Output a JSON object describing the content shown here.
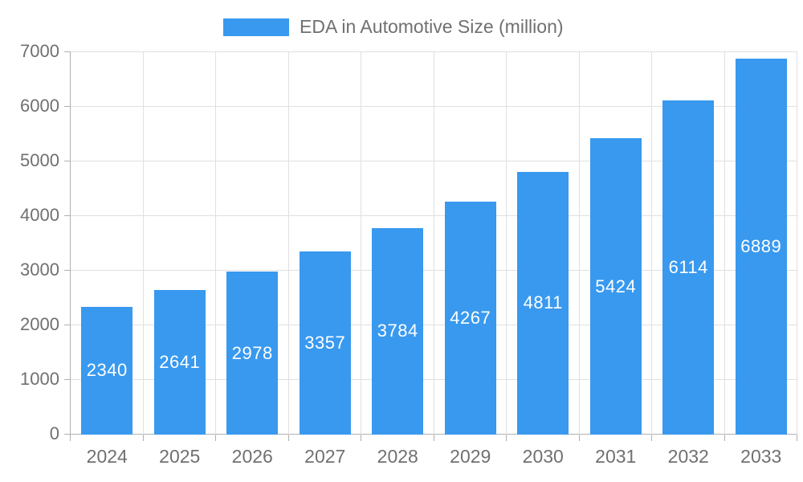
{
  "chart_data": {
    "type": "bar",
    "title": "EDA in Automotive Size (million)",
    "legend": [
      "EDA in Automotive Size (million)"
    ],
    "legend_position": "top-center",
    "categories": [
      "2024",
      "2025",
      "2026",
      "2027",
      "2028",
      "2029",
      "2030",
      "2031",
      "2032",
      "2033"
    ],
    "series": [
      {
        "name": "EDA in Automotive Size (million)",
        "values": [
          2340,
          2641,
          2978,
          3357,
          3784,
          4267,
          4811,
          5424,
          6114,
          6889
        ]
      }
    ],
    "xlabel": "",
    "ylabel": "",
    "ylim": [
      0,
      7000
    ],
    "y_ticks": [
      0,
      1000,
      2000,
      3000,
      4000,
      5000,
      6000,
      7000
    ],
    "grid": true,
    "bar_value_labels_visible": true,
    "colors": {
      "bar": "#3899ef",
      "bar_label_text": "#ffffff",
      "axis_text": "#707070",
      "grid_line": "#e0e0e0",
      "axis_line": "#b0b0b0",
      "background": "#ffffff"
    }
  }
}
